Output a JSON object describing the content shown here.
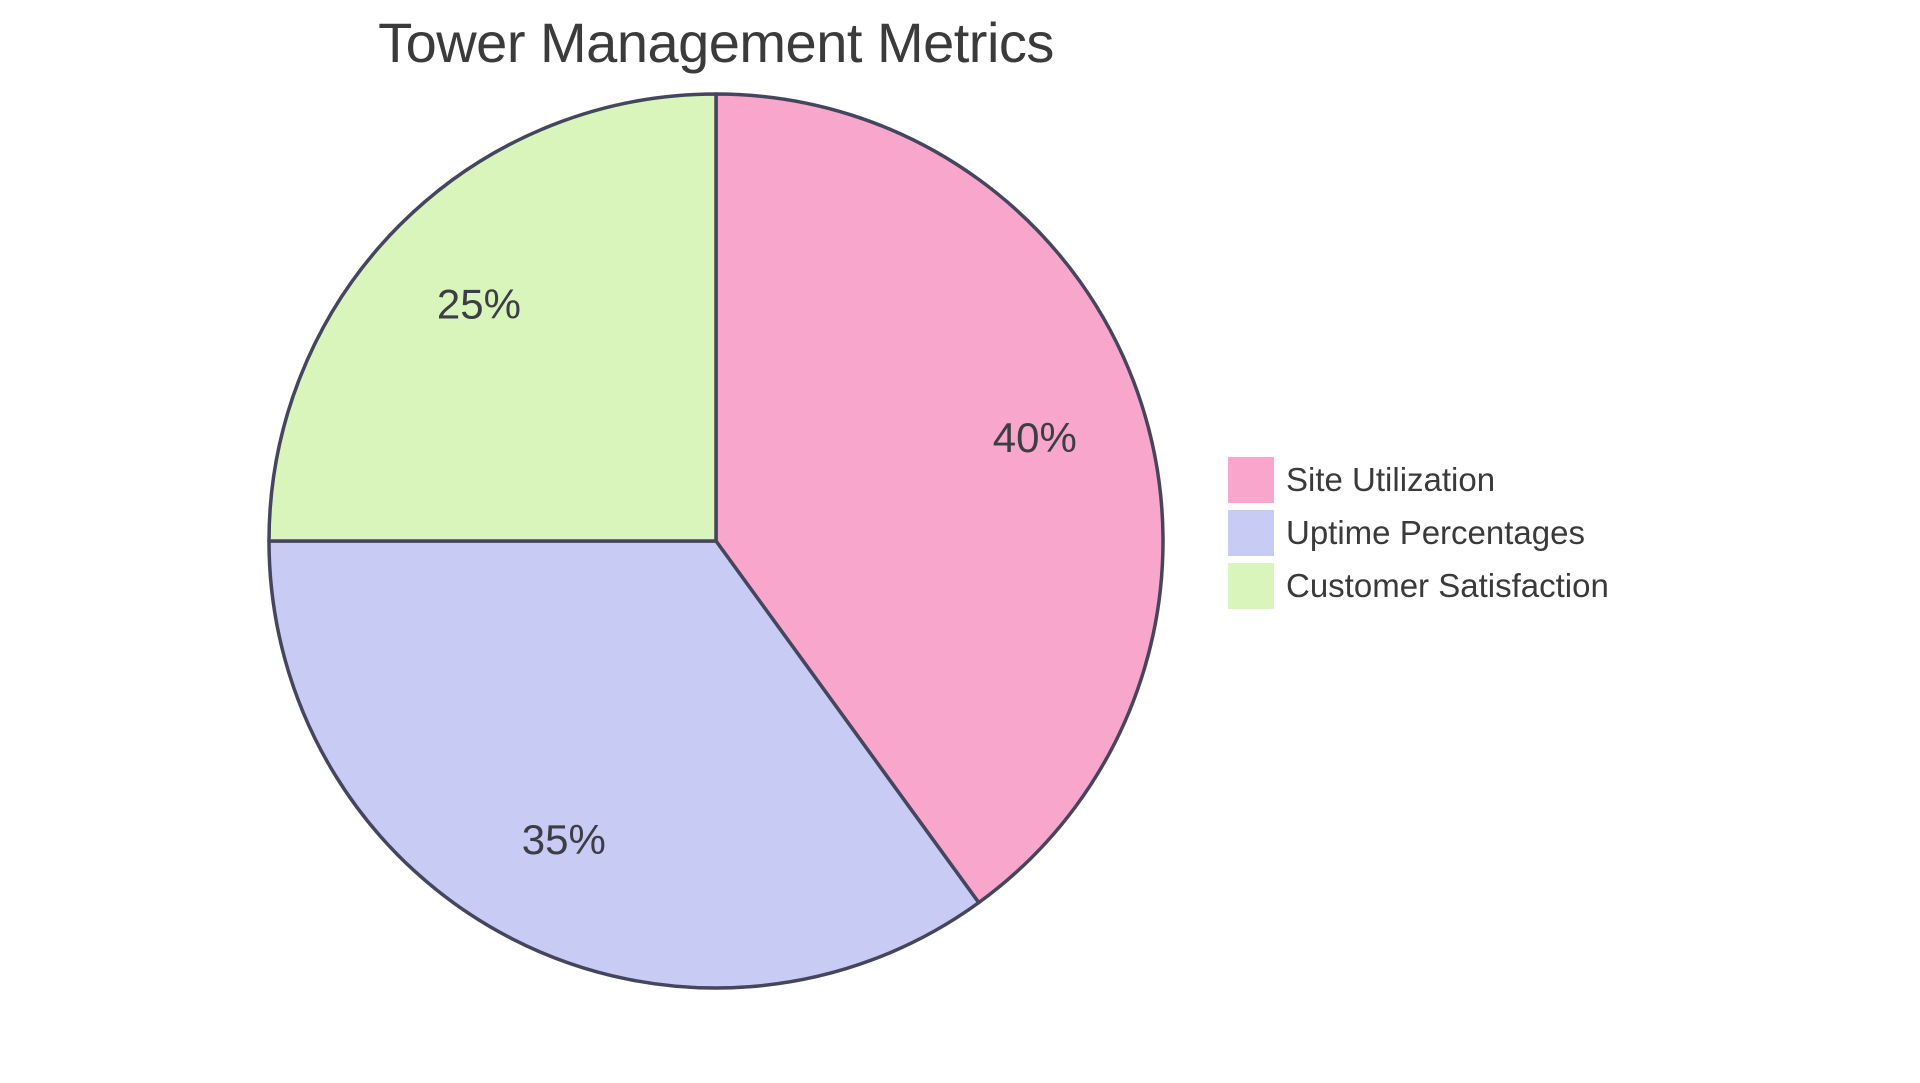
{
  "page": {
    "background_color": "#ffffff"
  },
  "chart_data": {
    "type": "pie",
    "title": "Tower Management Metrics",
    "slices": [
      {
        "label": "Site Utilization",
        "value": 40,
        "percent_label": "40%",
        "color": "#F9A6CC"
      },
      {
        "label": "Uptime Percentages",
        "value": 35,
        "percent_label": "35%",
        "color": "#C8CBF4"
      },
      {
        "label": "Customer Satisfaction",
        "value": 25,
        "percent_label": "25%",
        "color": "#D9F5BC"
      }
    ],
    "start_angle_deg": 0,
    "direction": "clockwise",
    "stroke_color": "#45455E",
    "stroke_width": 3.5,
    "slice_label_color": "#3d3d46",
    "title_color": "#3b3b3b",
    "legend_text_color": "#3a3a3a",
    "label_radius_fraction": 0.75,
    "legend_position": "right",
    "grid": false
  }
}
